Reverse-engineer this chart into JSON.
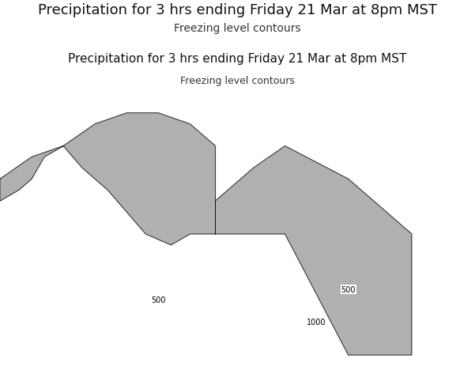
{
  "title": "Precipitation for 3 hrs ending Friday 21 Mar at 8pm MST",
  "subtitle": "Freezing level contours",
  "title_fontsize": 13,
  "subtitle_fontsize": 10,
  "background_color": "#ffffff",
  "ocean_color": "#d0d4f0",
  "land_color": "#b0b0b0",
  "border_color": "#000000",
  "contour_color": "#cc0000",
  "contour_label_values": [
    500,
    1000
  ],
  "map_extent": [
    -175,
    -100,
    48,
    78
  ],
  "figsize": [
    6.01,
    4.64
  ],
  "dpi": 100
}
